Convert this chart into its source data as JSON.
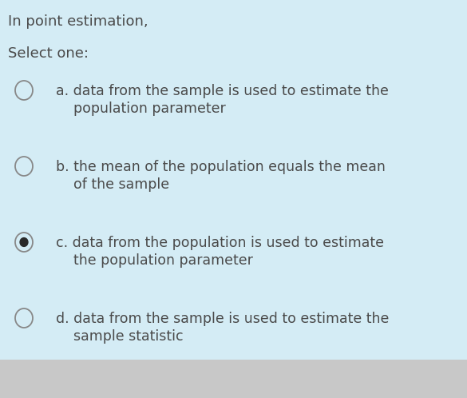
{
  "background_color": "#d4ecf5",
  "bottom_strip_color": "#c8c8c8",
  "title": "In point estimation,",
  "select_label": "Select one:",
  "options": [
    {
      "line1": "a. data from the sample is used to estimate the",
      "line2": "    population parameter",
      "selected": false
    },
    {
      "line1": "b. the mean of the population equals the mean",
      "line2": "    of the sample",
      "selected": false
    },
    {
      "line1": "c. data from the population is used to estimate",
      "line2": "    the population parameter",
      "selected": true
    },
    {
      "line1": "d. data from the sample is used to estimate the",
      "line2": "    sample statistic",
      "selected": false
    }
  ],
  "text_color": "#4a4a4a",
  "radio_edge_color": "#888888",
  "radio_fill_color": "#d4ecf5",
  "radio_dot_color": "#2a2a2a",
  "title_fontsize": 13,
  "select_fontsize": 13,
  "option_fontsize": 12.5,
  "fig_width": 5.85,
  "fig_height": 4.98,
  "dpi": 100
}
